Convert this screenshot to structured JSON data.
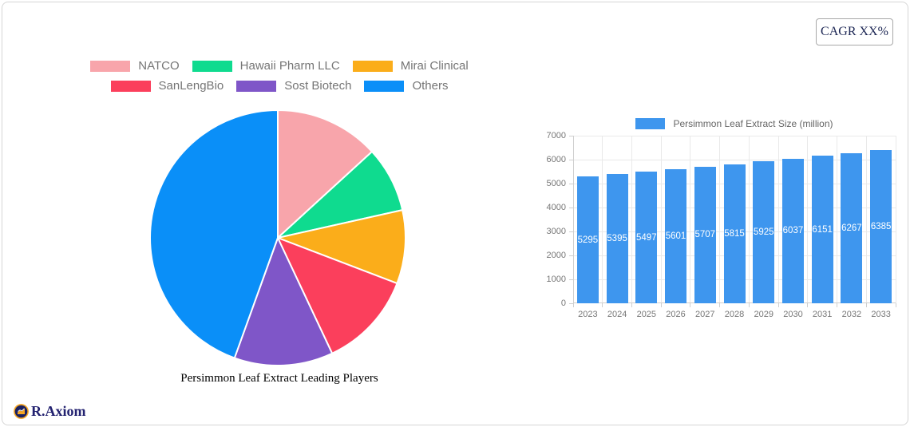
{
  "cagr_button": {
    "label": "CAGR XX%"
  },
  "logo": {
    "text": "R.Axiom"
  },
  "pie_chart": {
    "title": "Persimmon Leaf Extract Leading Players"
  },
  "bar_chart": {
    "legend_label": "Persimmon Leaf Extract Size (million)"
  },
  "colors": {
    "bar_blue": "#3E96EE",
    "legend_text": "#757575",
    "axis_text": "#777777",
    "navy": "#232270",
    "orange_accent": "#F5A623"
  },
  "chart_data": [
    {
      "type": "pie",
      "title": "Persimmon Leaf Extract Leading Players",
      "legend_position": "top",
      "start_angle_deg": 0,
      "direction": "clockwise",
      "series": [
        {
          "label": "NATCO",
          "value": 13.2,
          "color": "#F8A5AB"
        },
        {
          "label": "Hawaii Pharm LLC",
          "value": 8.3,
          "color": "#0FDB8F"
        },
        {
          "label": "Mirai Clinical",
          "value": 9.3,
          "color": "#FBAD1A"
        },
        {
          "label": "SanLengBio",
          "value": 12.2,
          "color": "#FB3F5C"
        },
        {
          "label": "Sost Biotech",
          "value": 12.5,
          "color": "#7F56C8"
        },
        {
          "label": "Others",
          "value": 44.5,
          "color": "#0A8FF8"
        }
      ]
    },
    {
      "type": "bar",
      "title": "Persimmon Leaf Extract Size (million)",
      "legend_position": "top",
      "categories": [
        "2023",
        "2024",
        "2025",
        "2026",
        "2027",
        "2028",
        "2029",
        "2030",
        "2031",
        "2032",
        "2033"
      ],
      "values": [
        5295,
        5395,
        5497,
        5601,
        5707,
        5815,
        5925,
        6037,
        6151,
        6267,
        6385
      ],
      "ylim": [
        0,
        7000
      ],
      "yticks": [
        0,
        1000,
        2000,
        3000,
        4000,
        5000,
        6000,
        7000
      ],
      "bar_color": "#3E96EE",
      "grid": true
    }
  ]
}
